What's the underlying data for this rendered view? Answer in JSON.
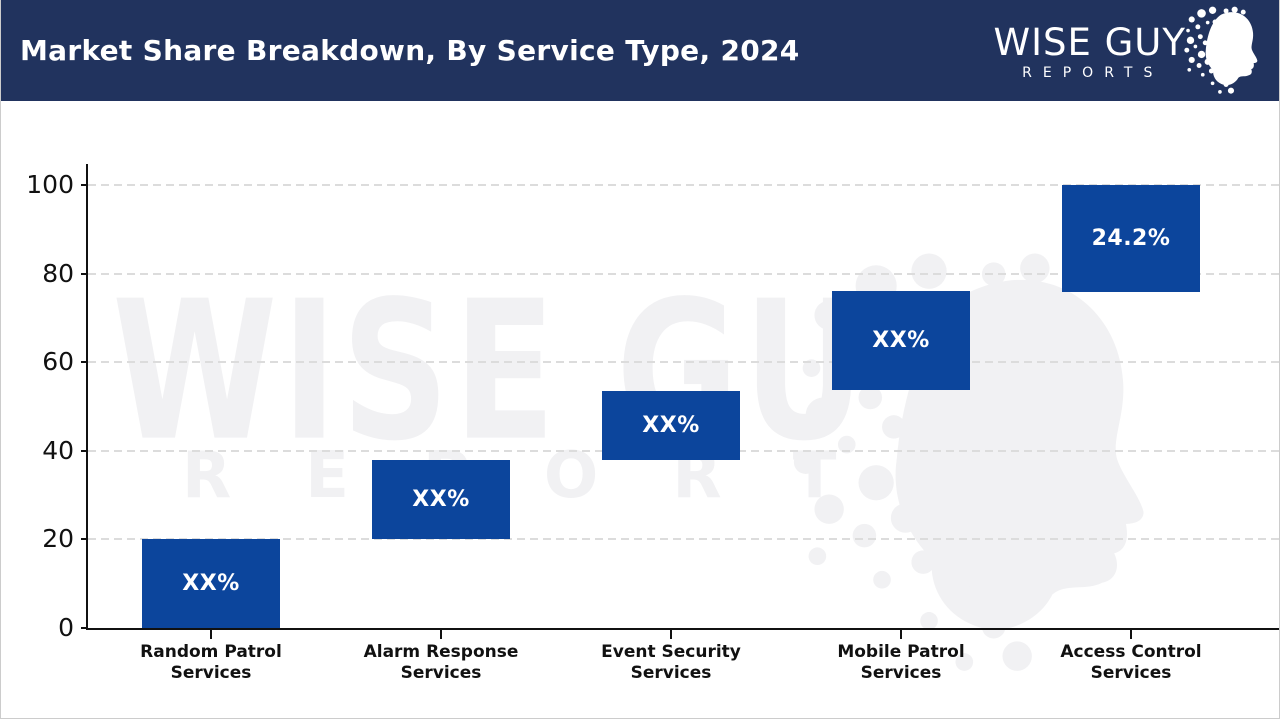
{
  "header": {
    "title": "Market Share Breakdown, By Service Type, 2024",
    "brand_line1": "WISE GUY",
    "brand_line2": "REPORTS"
  },
  "watermark": {
    "line1": "WISE GUY",
    "line2": "REPORTS"
  },
  "colors": {
    "header_bg": "#21335e",
    "bar": "#0c459c",
    "grid": "#dcdcdc",
    "axis": "#111111",
    "bar_label": "#ffffff",
    "watermark": "#f1f1f3"
  },
  "chart_data": {
    "type": "bar",
    "subtype": "waterfall",
    "title": "Market Share Breakdown, By Service Type, 2024",
    "xlabel": "",
    "ylabel": "",
    "grid": "dashed-horizontal",
    "legend": "none",
    "yticks": [
      0,
      20,
      40,
      60,
      80,
      100
    ],
    "ylim": [
      0,
      104.8
    ],
    "categories": [
      "Random Patrol\nServices",
      "Alarm Response\nServices",
      "Event Security\nServices",
      "Mobile Patrol\nServices",
      "Access Control\nServices"
    ],
    "segments": [
      {
        "category": "Random Patrol Services",
        "start": 0,
        "end": 20,
        "label": "XX%"
      },
      {
        "category": "Alarm Response Services",
        "start": 20,
        "end": 38,
        "label": "XX%"
      },
      {
        "category": "Event Security Services",
        "start": 38,
        "end": 53.4,
        "label": "XX%"
      },
      {
        "category": "Mobile Patrol Services",
        "start": 53.8,
        "end": 76,
        "label": "XX%"
      },
      {
        "category": "Access Control Services",
        "start": 75.8,
        "end": 100,
        "label": "24.2%"
      }
    ]
  }
}
